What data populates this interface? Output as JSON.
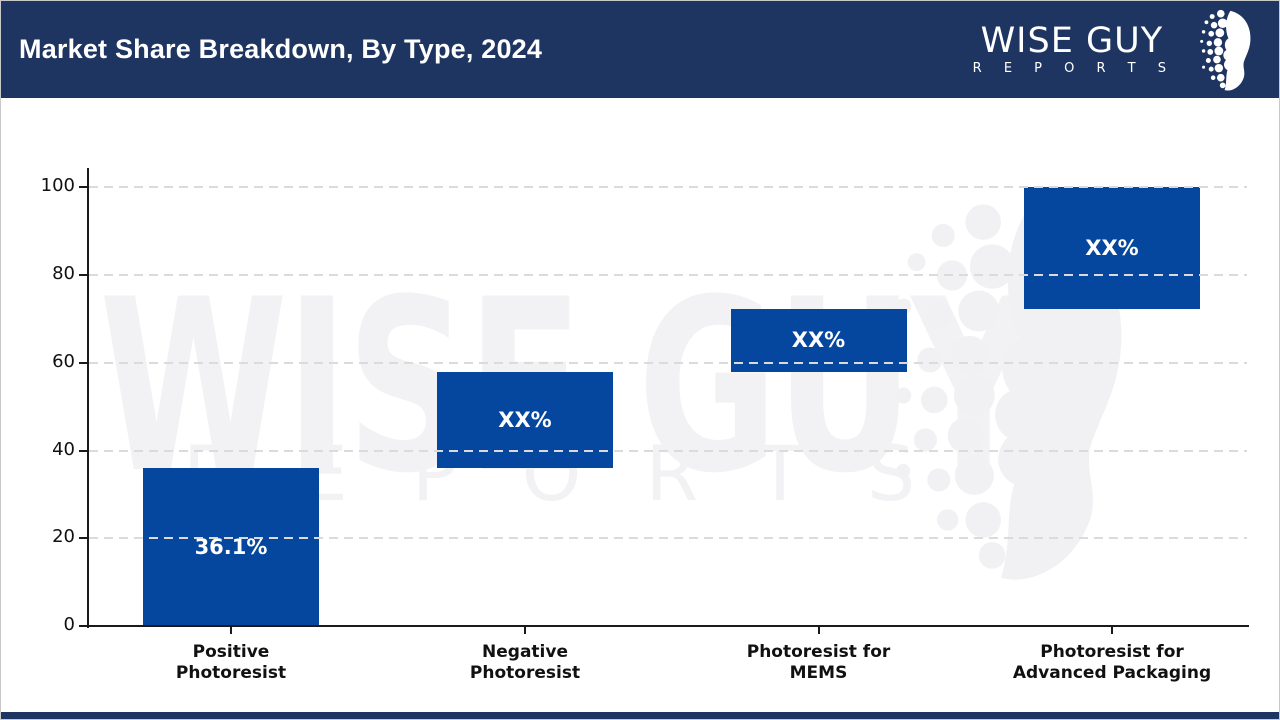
{
  "header": {
    "title": "Market Share Breakdown, By Type, 2024",
    "logo": {
      "line1": "WISE GU",
      "line1_accent": "Y",
      "line2": "R E P O R T S"
    }
  },
  "watermark": {
    "line1": "WISE GUY",
    "line2": "REPORTS"
  },
  "colors": {
    "header_bg": "#1f3561",
    "footer_bg": "#1f3561",
    "bar_blue": "#05479e",
    "gridline": "#dbdbdb",
    "axis": "#1a1a1a",
    "watermark": "#f2f2f4",
    "label_white": "#ffffff",
    "text_dark": "#111111"
  },
  "chart_data": {
    "type": "bar",
    "subtype": "waterfall",
    "title": "Market Share Breakdown, By Type, 2024",
    "xlabel": "",
    "ylabel": "",
    "ylim": [
      0,
      104.9
    ],
    "yticks": [
      0,
      20,
      40,
      60,
      80,
      100
    ],
    "grid": "dashed horizontal, drawn over bars",
    "legend": "none",
    "categories": [
      {
        "line1": "Positive",
        "line2": "Photoresist"
      },
      {
        "line1": "Negative",
        "line2": "Photoresist"
      },
      {
        "line1": "Photoresist for",
        "line2": "MEMS"
      },
      {
        "line1": "Photoresist for",
        "line2": "Advanced Packaging"
      }
    ],
    "bars": [
      {
        "label": "36.1%",
        "start": 0,
        "end": 36.1
      },
      {
        "label": "XX%",
        "start": 36.1,
        "end": 58.0
      },
      {
        "label": "XX%",
        "start": 58.0,
        "end": 72.3
      },
      {
        "label": "XX%",
        "start": 72.3,
        "end": 100.0
      }
    ]
  }
}
